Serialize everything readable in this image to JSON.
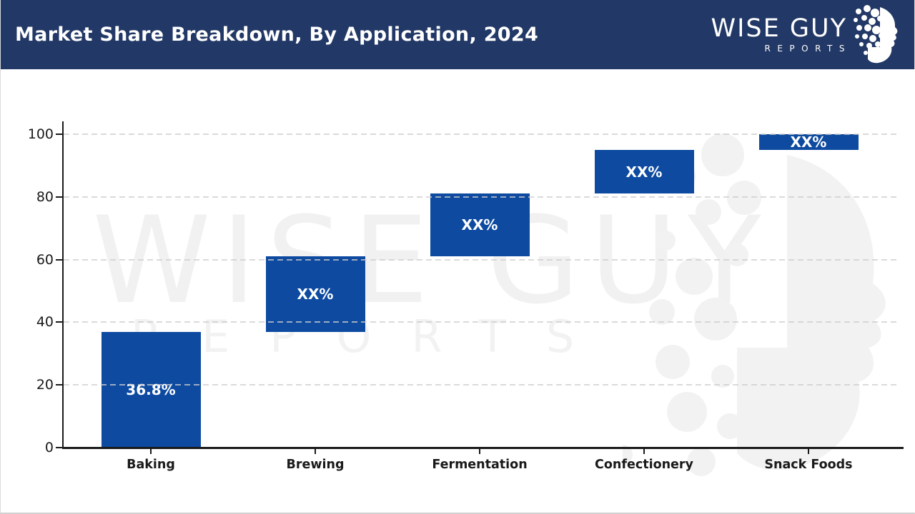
{
  "header": {
    "title": "Market Share Breakdown, By Application, 2024",
    "bg_color": "#223866",
    "logo": {
      "line1": "WISE GUY",
      "line2": "REPORTS"
    }
  },
  "watermark": {
    "line1": "WISE GUY",
    "line2": "REPORTS"
  },
  "chart_data": {
    "type": "bar",
    "subtype": "waterfall",
    "title": "Market Share Breakdown, By Application, 2024",
    "categories": [
      "Baking",
      "Brewing",
      "Fermentation",
      "Confectionery",
      "Snack Foods"
    ],
    "segments": [
      {
        "category": "Baking",
        "start": 0,
        "end": 36.8,
        "label": "36.8%"
      },
      {
        "category": "Brewing",
        "start": 36.8,
        "end": 61,
        "label": "XX%"
      },
      {
        "category": "Fermentation",
        "start": 61,
        "end": 81,
        "label": "XX%"
      },
      {
        "category": "Confectionery",
        "start": 81,
        "end": 95,
        "label": "XX%"
      },
      {
        "category": "Snack Foods",
        "start": 95,
        "end": 100,
        "label": "XX%"
      }
    ],
    "yticks": [
      0,
      20,
      40,
      60,
      80,
      100
    ],
    "ylim": [
      0,
      100
    ],
    "xlabel": "",
    "ylabel": "",
    "grid": true,
    "gridline_style": "dashed",
    "legend": "none",
    "bar_color": "#0d4aa0",
    "bar_label_color": "#ffffff",
    "axis_color": "#1a1a1a",
    "grid_color": "#d9d9d9"
  }
}
